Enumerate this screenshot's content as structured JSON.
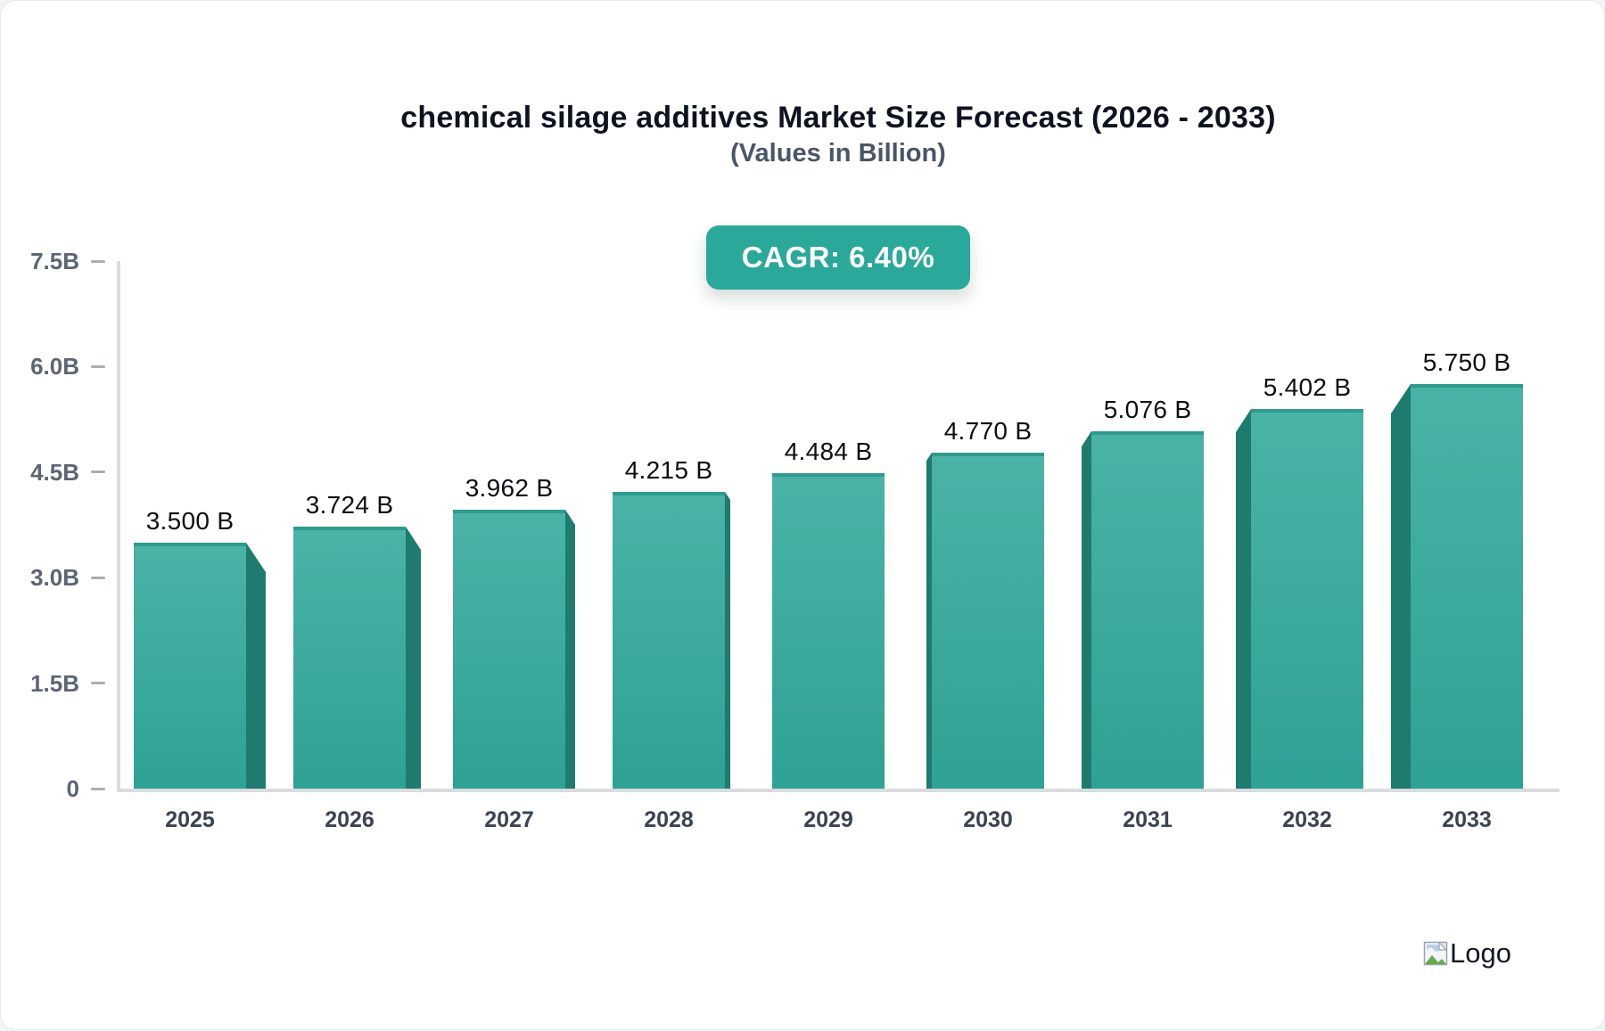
{
  "header": {
    "title": "chemical silage additives Market Size Forecast (2026 - 2033)",
    "subtitle": "(Values in Billion)",
    "cagr_label": "CAGR: 6.40%"
  },
  "footer": {
    "logo_alt_text": "Logo"
  },
  "colors": {
    "badge_bg": "#2AA89A",
    "bar_face_top": "#49B3A6",
    "bar_face_bottom": "#2EA294",
    "bar_top_edge": "#2E9B8D",
    "bar_side": "#1E7B6E",
    "axis_line": "#d8dcdf",
    "tick_text": "#5c6573",
    "value_text": "#0b0f14",
    "year_text": "#3a4351"
  },
  "chart_data": {
    "type": "bar",
    "title": "chemical silage additives Market Size Forecast (2026 - 2033)",
    "subtitle": "(Values in Billion)",
    "annotation": "CAGR: 6.40%",
    "categories": [
      "2025",
      "2026",
      "2027",
      "2028",
      "2029",
      "2030",
      "2031",
      "2032",
      "2033"
    ],
    "values": [
      3.5,
      3.724,
      3.962,
      4.215,
      4.484,
      4.77,
      5.076,
      5.402,
      5.75
    ],
    "value_labels": [
      "3.500 B",
      "3.724 B",
      "3.962 B",
      "4.215 B",
      "4.484 B",
      "4.770 B",
      "5.076 B",
      "5.402 B",
      "5.750 B"
    ],
    "xlabel": "",
    "ylabel": "",
    "ylim": [
      0,
      7.5
    ],
    "yticks": [
      {
        "value": 0,
        "label": "0"
      },
      {
        "value": 1.5,
        "label": "1.5B"
      },
      {
        "value": 3.0,
        "label": "3.0B"
      },
      {
        "value": 4.5,
        "label": "4.5B"
      },
      {
        "value": 6.0,
        "label": "6.0B"
      },
      {
        "value": 7.5,
        "label": "7.5B"
      }
    ],
    "grid": false,
    "legend": null,
    "style": "pseudo-3d bars, perspective vanishing at center bar"
  }
}
